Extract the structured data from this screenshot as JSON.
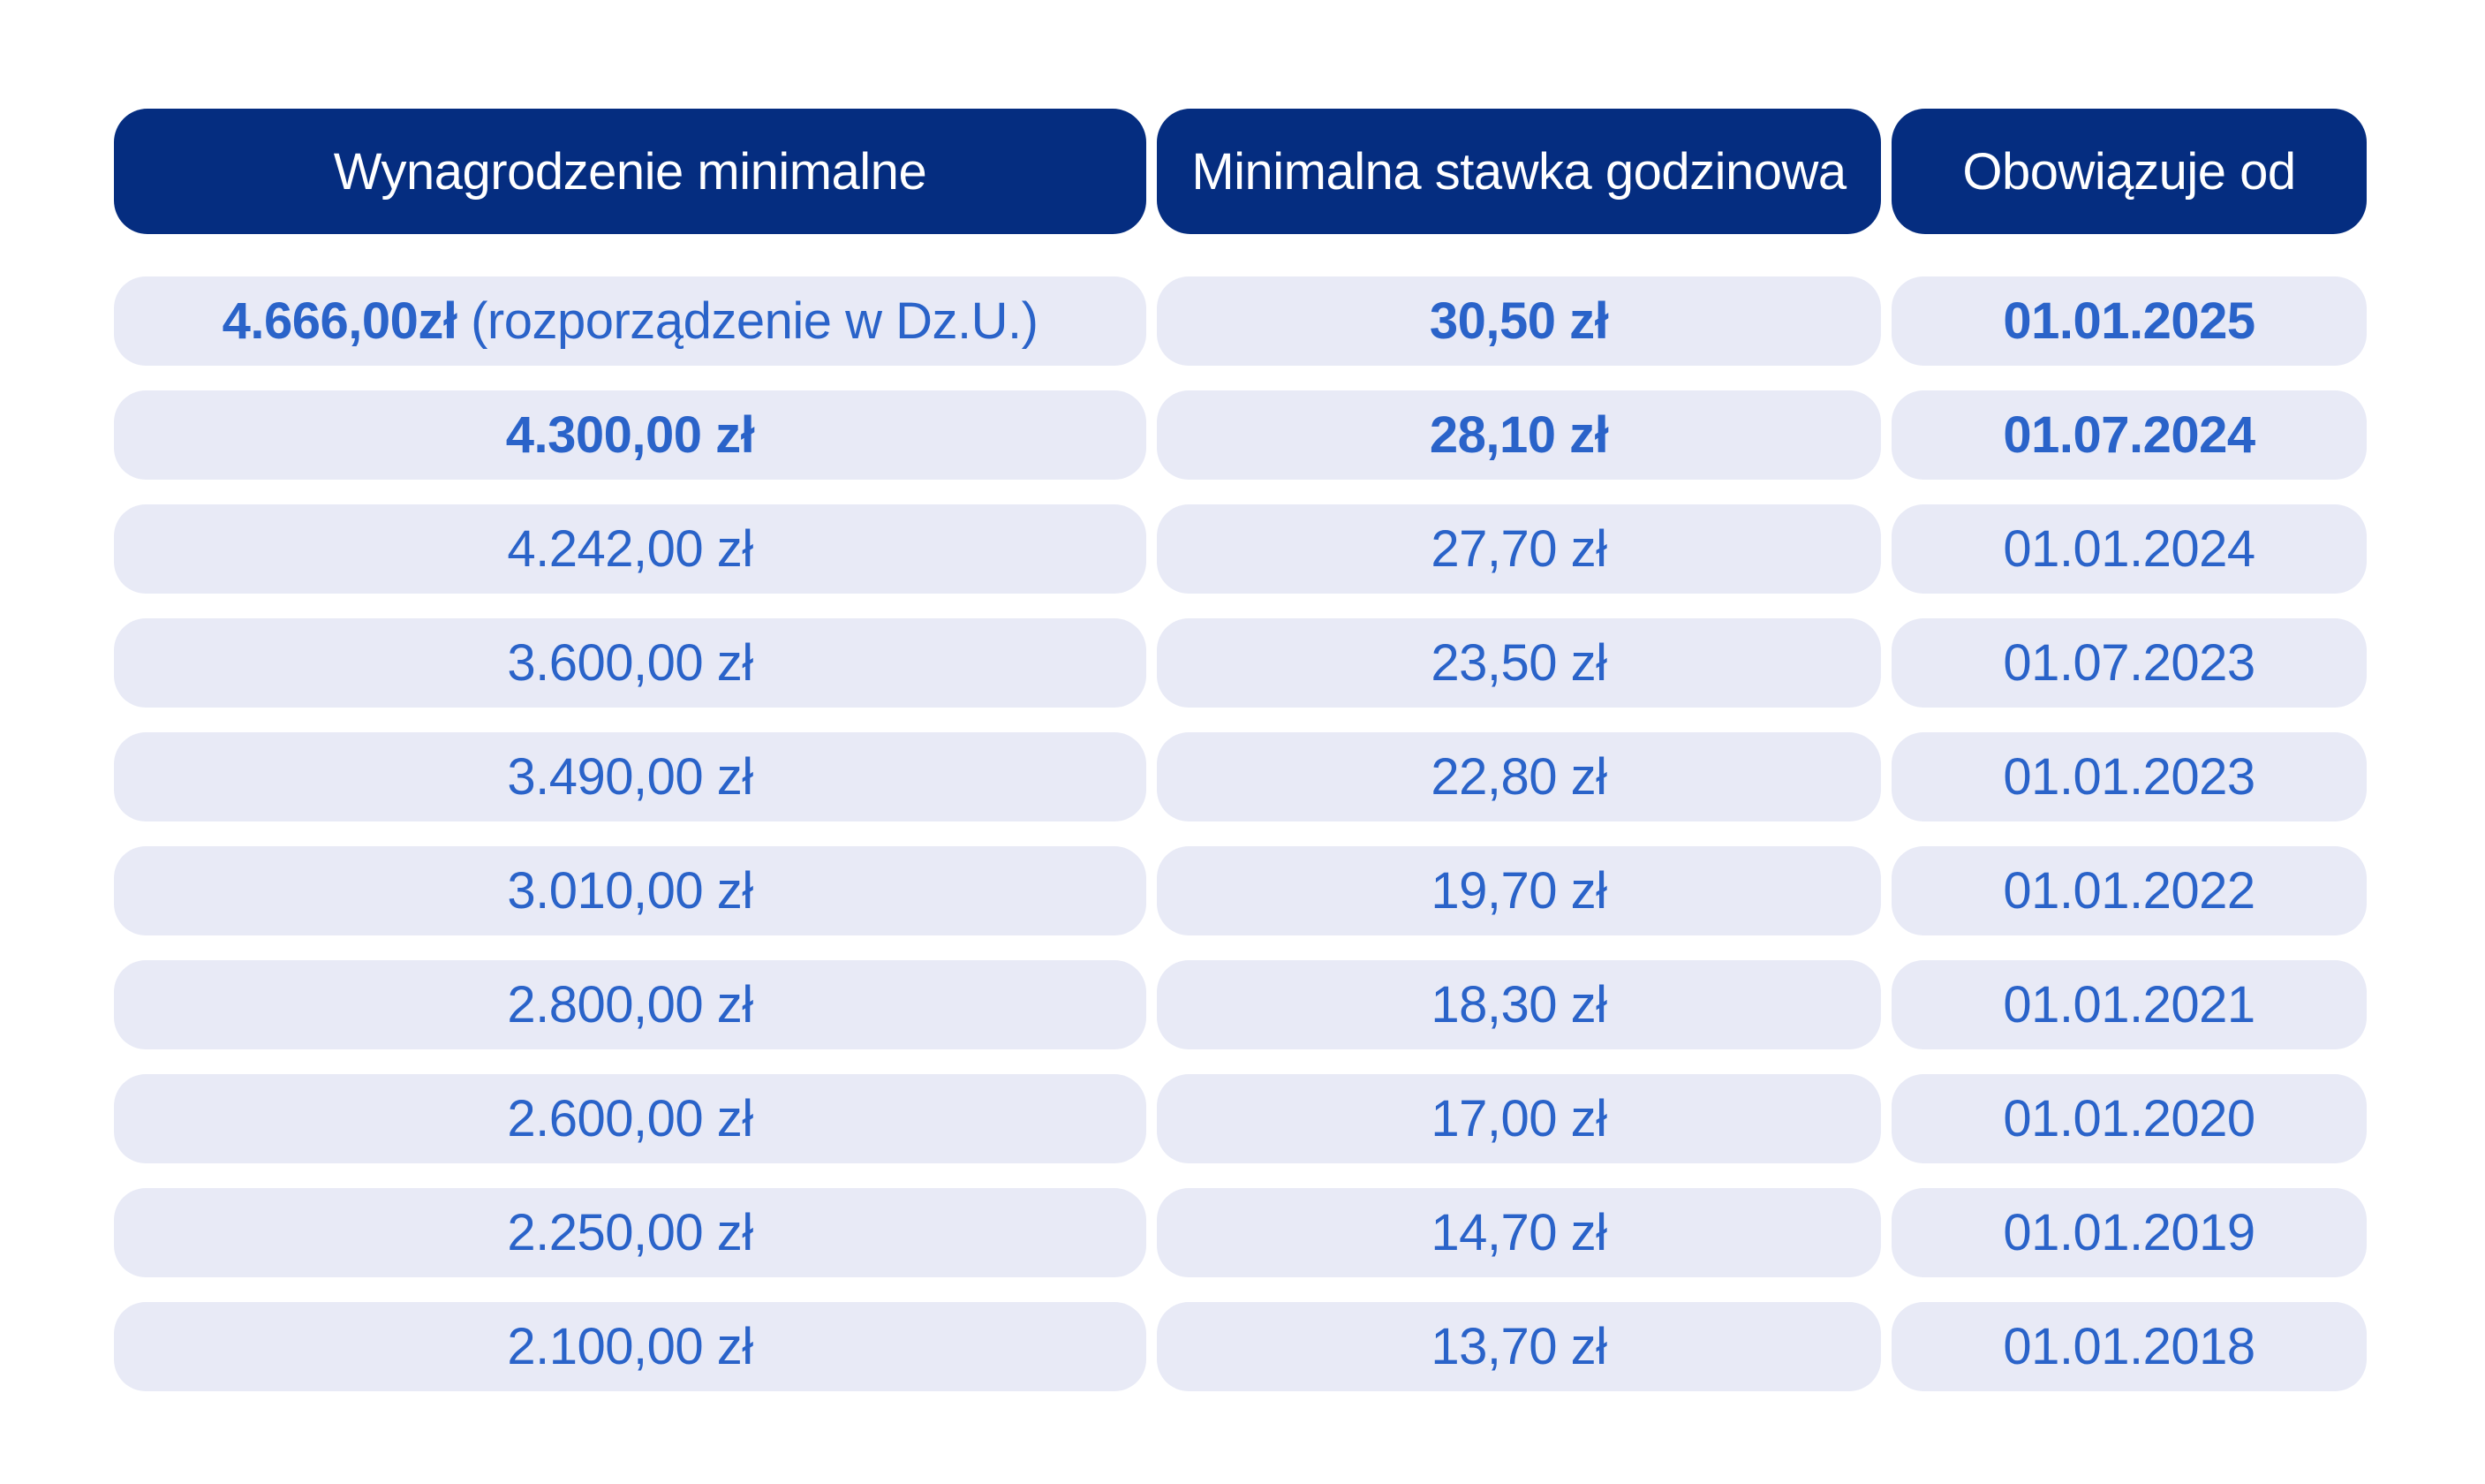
{
  "chart_data": {
    "type": "table",
    "columns": [
      "Wynagrodzenie minimalne",
      "Minimalna stawka godzinowa",
      "Obowiązuje od"
    ],
    "rows": [
      {
        "wynagrodzenie": "4.666,00zł",
        "note": "(rozporządzenie w Dz.U.)",
        "stawka": "30,50 zł",
        "obowiazuje_od": "01.01.2025",
        "bold": true
      },
      {
        "wynagrodzenie": "4.300,00 zł",
        "note": "",
        "stawka": "28,10 zł",
        "obowiazuje_od": "01.07.2024",
        "bold": true
      },
      {
        "wynagrodzenie": "4.242,00 zł",
        "note": "",
        "stawka": "27,70 zł",
        "obowiazuje_od": "01.01.2024",
        "bold": false
      },
      {
        "wynagrodzenie": "3.600,00 zł",
        "note": "",
        "stawka": "23,50 zł",
        "obowiazuje_od": "01.07.2023",
        "bold": false
      },
      {
        "wynagrodzenie": "3.490,00 zł",
        "note": "",
        "stawka": "22,80 zł",
        "obowiazuje_od": "01.01.2023",
        "bold": false
      },
      {
        "wynagrodzenie": "3.010,00 zł",
        "note": "",
        "stawka": "19,70 zł",
        "obowiazuje_od": "01.01.2022",
        "bold": false
      },
      {
        "wynagrodzenie": "2.800,00 zł",
        "note": "",
        "stawka": "18,30 zł",
        "obowiazuje_od": "01.01.2021",
        "bold": false
      },
      {
        "wynagrodzenie": "2.600,00 zł",
        "note": "",
        "stawka": "17,00 zł",
        "obowiazuje_od": "01.01.2020",
        "bold": false
      },
      {
        "wynagrodzenie": "2.250,00 zł",
        "note": "",
        "stawka": "14,70 zł",
        "obowiazuje_od": "01.01.2019",
        "bold": false
      },
      {
        "wynagrodzenie": "2.100,00 zł",
        "note": "",
        "stawka": "13,70 zł",
        "obowiazuje_od": "01.01.2018",
        "bold": false
      }
    ],
    "title": "",
    "legend": null,
    "grid": false
  },
  "colors": {
    "header_bg": "#052d80",
    "header_text": "#ffffff",
    "row_bg": "#e8eaf6",
    "text_blue": "#2a63c9",
    "page_bg": "#ffffff"
  }
}
